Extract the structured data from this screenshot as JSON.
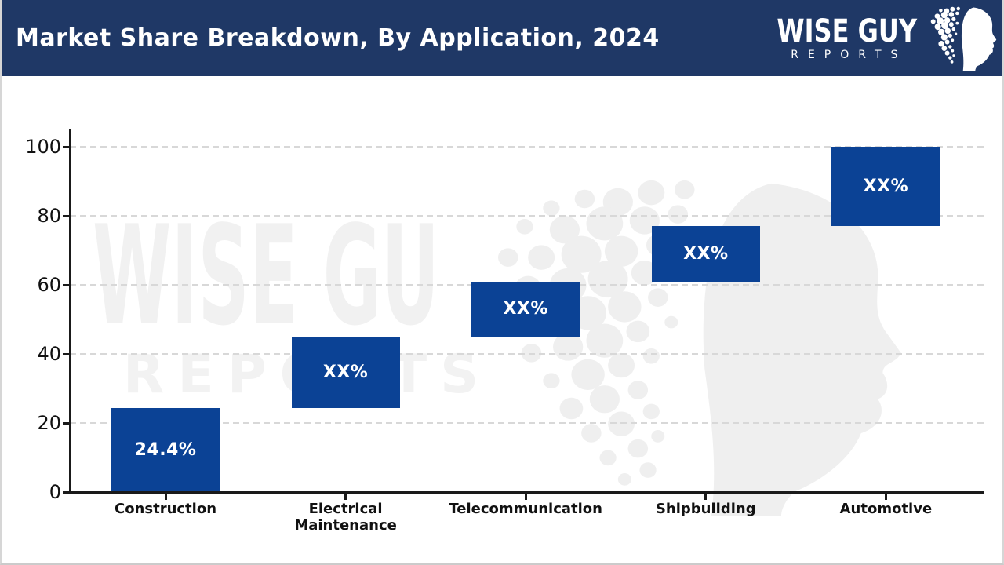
{
  "header": {
    "title": "Market Share Breakdown, By Application, 2024",
    "bg_color": "#1f3866",
    "logo": {
      "wordmark": "WISE GUY",
      "sub": "REPORTS"
    }
  },
  "watermark": {
    "wordmark": "WISE GU",
    "sub": "REPORTS"
  },
  "chart_data": {
    "type": "bar",
    "subtype": "floating-waterfall",
    "title": "Market Share Breakdown, By Application, 2024",
    "xlabel": "",
    "ylabel": "",
    "ylim": [
      0,
      100
    ],
    "yticks": [
      0,
      20,
      40,
      60,
      80,
      100
    ],
    "grid": "horizontal-dashed",
    "legend": "none",
    "bar_color": "#0b4295",
    "bar_label_color": "#ffffff",
    "categories": [
      "Construction",
      "Electrical\nMaintenance",
      "Telecommunication",
      "Shipbuilding",
      "Automotive"
    ],
    "segments": [
      {
        "category": "Construction",
        "start": 0,
        "end": 24.4,
        "label": "24.4%"
      },
      {
        "category": "Electrical Maintenance",
        "start": 24.4,
        "end": 45,
        "label": "XX%"
      },
      {
        "category": "Telecommunication",
        "start": 45,
        "end": 61,
        "label": "XX%"
      },
      {
        "category": "Shipbuilding",
        "start": 61,
        "end": 77,
        "label": "XX%"
      },
      {
        "category": "Automotive",
        "start": 77,
        "end": 100,
        "label": "XX%"
      }
    ]
  }
}
